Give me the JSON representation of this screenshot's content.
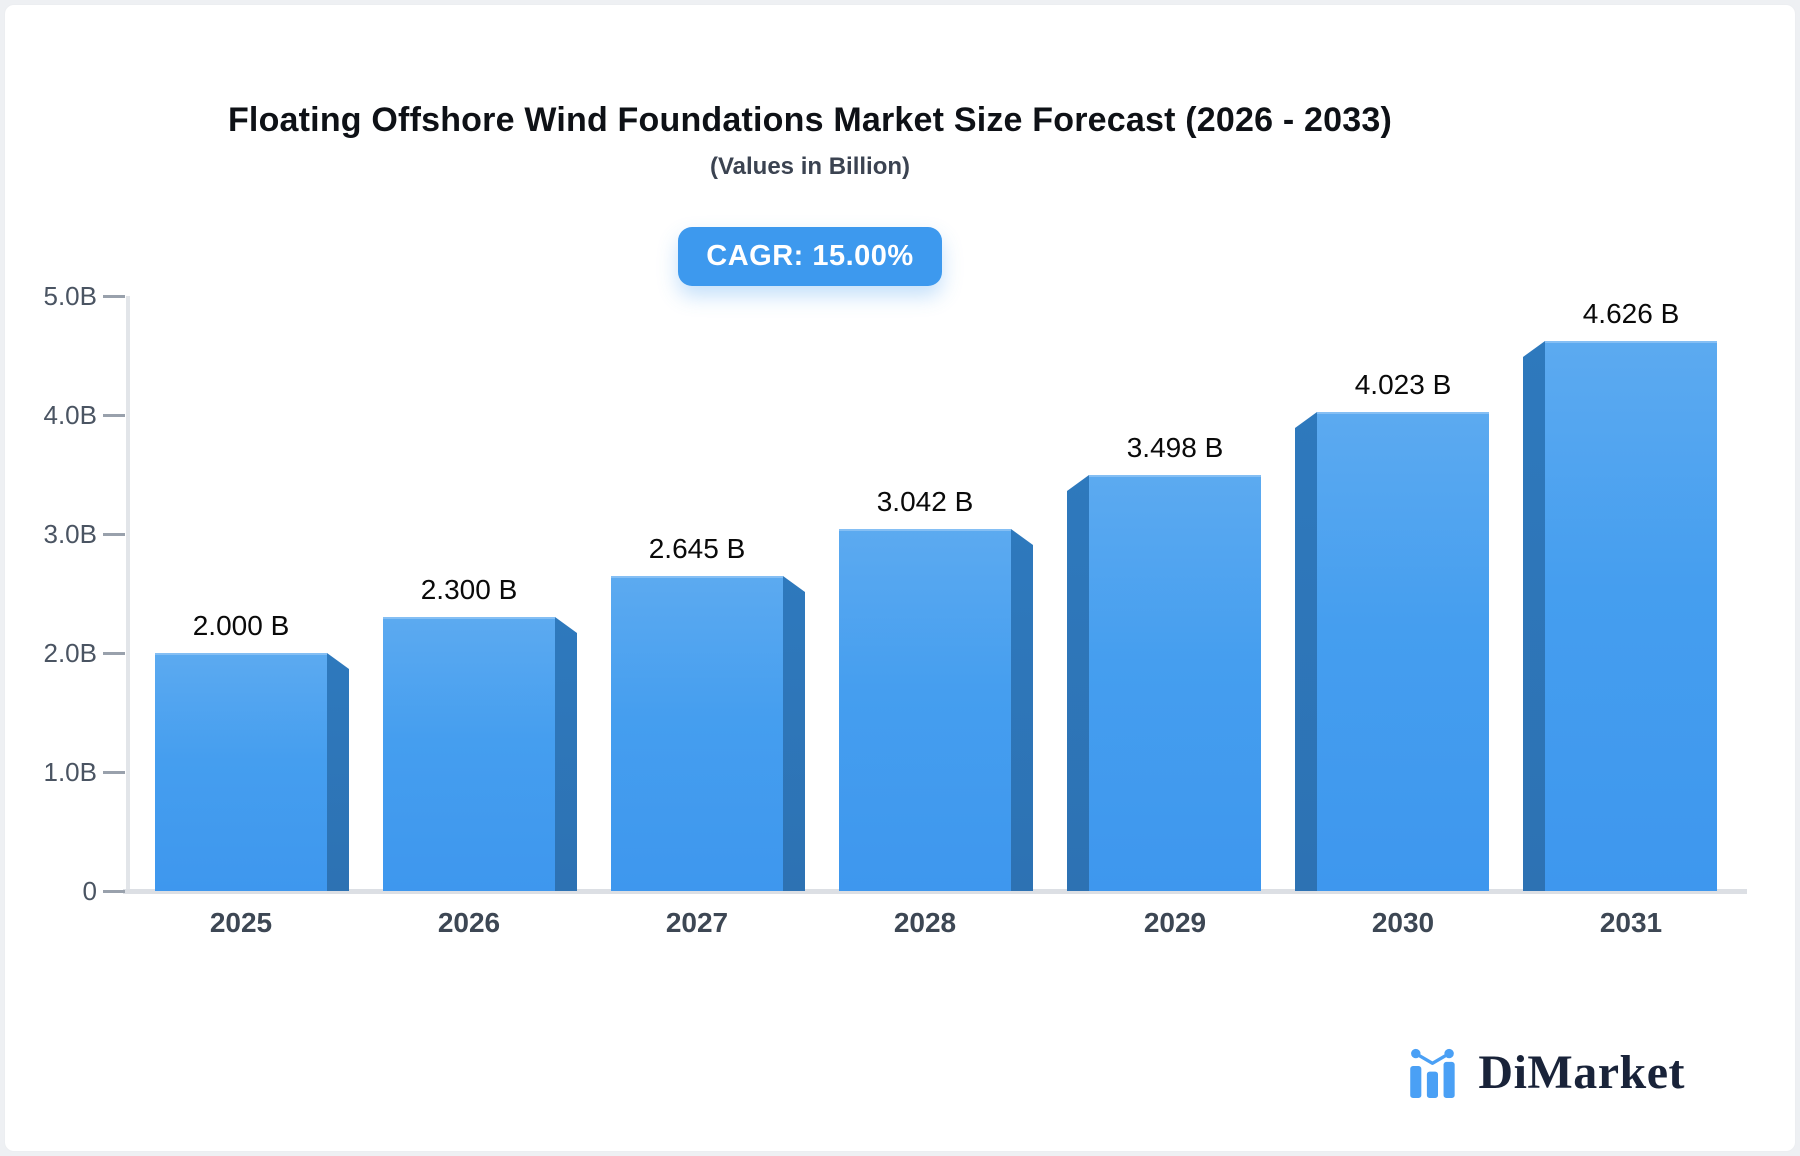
{
  "header": {
    "title": "Floating Offshore Wind Foundations Market Size Forecast (2026 - 2033)",
    "subtitle": "(Values in Billion)",
    "cagr_badge": "CAGR: 15.00%",
    "badge_color": "#3d99ee"
  },
  "chart_data": {
    "type": "bar",
    "categories": [
      "2025",
      "2026",
      "2027",
      "2028",
      "2029",
      "2030",
      "2031"
    ],
    "values": [
      2.0,
      2.3,
      2.645,
      3.042,
      3.498,
      4.023,
      4.626
    ],
    "value_labels": [
      "2.000 B",
      "2.300 B",
      "2.645 B",
      "3.042 B",
      "3.498 B",
      "4.023 B",
      "4.626 B"
    ],
    "unit": "Billion",
    "y_ticks": [
      "0",
      "1.0B",
      "2.0B",
      "3.0B",
      "4.0B",
      "5.0B"
    ],
    "ylim": [
      0,
      5
    ],
    "xlabel": "",
    "ylabel": "",
    "grid": false,
    "legend": null,
    "bar_color_top": "#5caaf0",
    "bar_color_bottom": "#3e97ee",
    "bar_side_color": "#2d74b6",
    "style": "3d-effect bars, dark side panel faces chart center"
  },
  "footer": {
    "logo_text": "DiMarket",
    "logo_icon": "bar-chart-line-logo-icon",
    "logo_icon_color": "#4aa0f5",
    "logo_text_color": "#192339"
  }
}
